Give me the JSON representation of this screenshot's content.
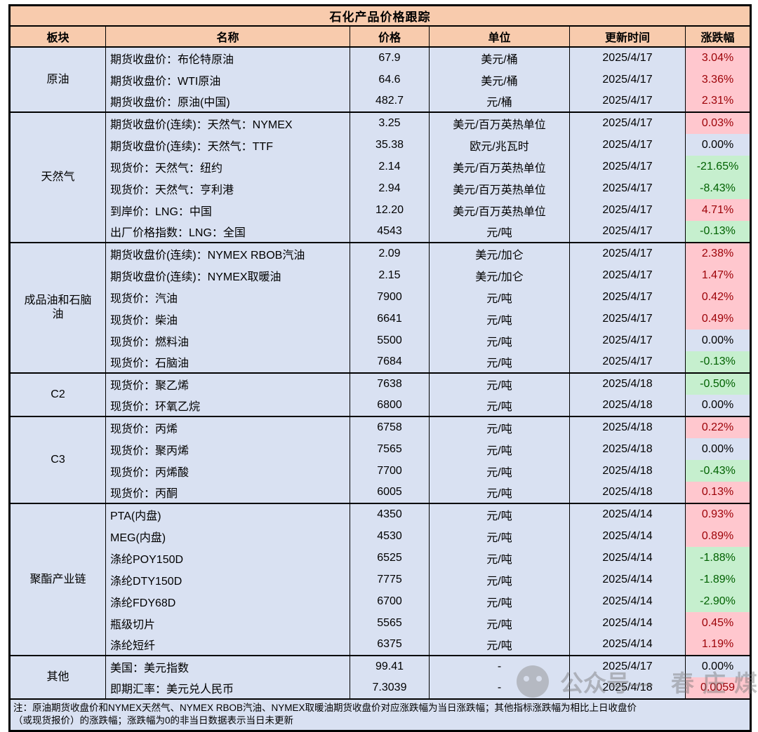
{
  "title": "石化产品价格跟踪",
  "columns": [
    "板块",
    "名称",
    "价格",
    "单位",
    "更新时间",
    "涨跌幅"
  ],
  "sections": [
    {
      "label": "原油",
      "rows": [
        {
          "name": "期货收盘价：布伦特原油",
          "price": "67.9",
          "unit": "美元/桶",
          "date": "2025/4/17",
          "change": "3.04%",
          "trend": "up"
        },
        {
          "name": "期货收盘价：WTI原油",
          "price": "64.6",
          "unit": "美元/桶",
          "date": "2025/4/17",
          "change": "3.36%",
          "trend": "up"
        },
        {
          "name": "期货收盘价：原油(中国)",
          "price": "482.7",
          "unit": "元/桶",
          "date": "2025/4/17",
          "change": "2.31%",
          "trend": "up"
        }
      ]
    },
    {
      "label": "天然气",
      "rows": [
        {
          "name": "期货收盘价(连续)：天然气：NYMEX",
          "price": "3.25",
          "unit": "美元/百万英热单位",
          "date": "2025/4/17",
          "change": "0.03%",
          "trend": "up"
        },
        {
          "name": "期货收盘价(连续)：天然气：TTF",
          "price": "35.38",
          "unit": "欧元/兆瓦时",
          "date": "2025/4/17",
          "change": "0.00%",
          "trend": "flat"
        },
        {
          "name": "现货价：天然气：纽约",
          "price": "2.14",
          "unit": "美元/百万英热单位",
          "date": "2025/4/17",
          "change": "-21.65%",
          "trend": "down"
        },
        {
          "name": "现货价：天然气：亨利港",
          "price": "2.94",
          "unit": "美元/百万英热单位",
          "date": "2025/4/17",
          "change": "-8.43%",
          "trend": "down"
        },
        {
          "name": "到岸价：LNG：中国",
          "price": "12.20",
          "unit": "美元/百万英热单位",
          "date": "2025/4/17",
          "change": "4.71%",
          "trend": "up"
        },
        {
          "name": "出厂价格指数：LNG：全国",
          "price": "4543",
          "unit": "元/吨",
          "date": "2025/4/17",
          "change": "-0.13%",
          "trend": "down"
        }
      ]
    },
    {
      "label": "成品油和石脑油",
      "rows": [
        {
          "name": "期货收盘价(连续)：NYMEX RBOB汽油",
          "price": "2.09",
          "unit": "美元/加仑",
          "date": "2025/4/17",
          "change": "2.38%",
          "trend": "up"
        },
        {
          "name": "期货收盘价(连续)：NYMEX取暖油",
          "price": "2.15",
          "unit": "美元/加仑",
          "date": "2025/4/17",
          "change": "1.47%",
          "trend": "up"
        },
        {
          "name": "现货价：汽油",
          "price": "7900",
          "unit": "元/吨",
          "date": "2025/4/17",
          "change": "0.42%",
          "trend": "up"
        },
        {
          "name": "现货价：柴油",
          "price": "6641",
          "unit": "元/吨",
          "date": "2025/4/17",
          "change": "0.49%",
          "trend": "up"
        },
        {
          "name": "现货价：燃料油",
          "price": "5500",
          "unit": "元/吨",
          "date": "2025/4/17",
          "change": "0.00%",
          "trend": "flat"
        },
        {
          "name": "现货价：石脑油",
          "price": "7684",
          "unit": "元/吨",
          "date": "2025/4/17",
          "change": "-0.13%",
          "trend": "down"
        }
      ]
    },
    {
      "label": "C2",
      "rows": [
        {
          "name": "现货价：聚乙烯",
          "price": "7638",
          "unit": "元/吨",
          "date": "2025/4/18",
          "change": "-0.50%",
          "trend": "down"
        },
        {
          "name": "现货价：环氧乙烷",
          "price": "6800",
          "unit": "元/吨",
          "date": "2025/4/18",
          "change": "0.00%",
          "trend": "flat"
        }
      ]
    },
    {
      "label": "C3",
      "rows": [
        {
          "name": "现货价：丙烯",
          "price": "6758",
          "unit": "元/吨",
          "date": "2025/4/18",
          "change": "0.22%",
          "trend": "up"
        },
        {
          "name": "现货价：聚丙烯",
          "price": "7565",
          "unit": "元/吨",
          "date": "2025/4/18",
          "change": "0.00%",
          "trend": "flat"
        },
        {
          "name": "现货价：丙烯酸",
          "price": "7700",
          "unit": "元/吨",
          "date": "2025/4/18",
          "change": "-0.43%",
          "trend": "down"
        },
        {
          "name": "现货价：丙酮",
          "price": "6005",
          "unit": "元/吨",
          "date": "2025/4/18",
          "change": "0.13%",
          "trend": "up"
        }
      ]
    },
    {
      "label": "聚酯产业链",
      "rows": [
        {
          "name": "PTA(内盘)",
          "price": "4350",
          "unit": "元/吨",
          "date": "2025/4/14",
          "change": "0.93%",
          "trend": "up"
        },
        {
          "name": "MEG(内盘)",
          "price": "4530",
          "unit": "元/吨",
          "date": "2025/4/14",
          "change": "0.89%",
          "trend": "up"
        },
        {
          "name": "涤纶POY150D",
          "price": "6525",
          "unit": "元/吨",
          "date": "2025/4/14",
          "change": "-1.88%",
          "trend": "down"
        },
        {
          "name": "涤纶DTY150D",
          "price": "7775",
          "unit": "元/吨",
          "date": "2025/4/14",
          "change": "-1.89%",
          "trend": "down"
        },
        {
          "name": "涤纶FDY68D",
          "price": "6700",
          "unit": "元/吨",
          "date": "2025/4/14",
          "change": "-2.90%",
          "trend": "down"
        },
        {
          "name": "瓶级切片",
          "price": "5565",
          "unit": "元/吨",
          "date": "2025/4/14",
          "change": "0.45%",
          "trend": "up"
        },
        {
          "name": "涤纶短纤",
          "price": "6375",
          "unit": "元/吨",
          "date": "2025/4/14",
          "change": "1.19%",
          "trend": "up"
        }
      ]
    },
    {
      "label": "其他",
      "rows": [
        {
          "name": "美国：美元指数",
          "price": "99.41",
          "unit": "-",
          "date": "2025/4/17",
          "change": "0.00%",
          "trend": "flat"
        },
        {
          "name": "即期汇率：美元兑人民币",
          "price": "7.3039",
          "unit": "-",
          "date": "2025/4/18",
          "change": "0.0059",
          "trend": "up"
        }
      ]
    }
  ],
  "footnote": {
    "line1": "注：原油期货收盘价和NYMEX天然气、NYMEX RBOB汽油、NYMEX取暖油期货收盘价对应涨跌幅为当日涨跌幅；其他指标涨跌幅为相比上日收盘价",
    "line2": "（或现货报价）的涨跌幅；涨跌幅为0的非当日数据表示当日未更新"
  },
  "watermark": {
    "prefix": "公众号—",
    "name": "春庄煤炭"
  },
  "colors": {
    "header_bg": "#F8CBAD",
    "body_bg": "#D9E1F2",
    "up_bg": "#FFC7CE",
    "up_text": "#9C0006",
    "down_bg": "#C6EFCE",
    "down_text": "#006100",
    "border": "#000000"
  },
  "chart_data": {
    "type": "table",
    "title": "石化产品价格跟踪",
    "columns": [
      "板块",
      "名称",
      "价格",
      "单位",
      "更新时间",
      "涨跌幅"
    ],
    "rows": [
      [
        "原油",
        "期货收盘价：布伦特原油",
        "67.9",
        "美元/桶",
        "2025/4/17",
        "3.04%"
      ],
      [
        "原油",
        "期货收盘价：WTI原油",
        "64.6",
        "美元/桶",
        "2025/4/17",
        "3.36%"
      ],
      [
        "原油",
        "期货收盘价：原油(中国)",
        "482.7",
        "元/桶",
        "2025/4/17",
        "2.31%"
      ],
      [
        "天然气",
        "期货收盘价(连续)：天然气：NYMEX",
        "3.25",
        "美元/百万英热单位",
        "2025/4/17",
        "0.03%"
      ],
      [
        "天然气",
        "期货收盘价(连续)：天然气：TTF",
        "35.38",
        "欧元/兆瓦时",
        "2025/4/17",
        "0.00%"
      ],
      [
        "天然气",
        "现货价：天然气：纽约",
        "2.14",
        "美元/百万英热单位",
        "2025/4/17",
        "-21.65%"
      ],
      [
        "天然气",
        "现货价：天然气：亨利港",
        "2.94",
        "美元/百万英热单位",
        "2025/4/17",
        "-8.43%"
      ],
      [
        "天然气",
        "到岸价：LNG：中国",
        "12.20",
        "美元/百万英热单位",
        "2025/4/17",
        "4.71%"
      ],
      [
        "天然气",
        "出厂价格指数：LNG：全国",
        "4543",
        "元/吨",
        "2025/4/17",
        "-0.13%"
      ],
      [
        "成品油和石脑油",
        "期货收盘价(连续)：NYMEX RBOB汽油",
        "2.09",
        "美元/加仑",
        "2025/4/17",
        "2.38%"
      ],
      [
        "成品油和石脑油",
        "期货收盘价(连续)：NYMEX取暖油",
        "2.15",
        "美元/加仑",
        "2025/4/17",
        "1.47%"
      ],
      [
        "成品油和石脑油",
        "现货价：汽油",
        "7900",
        "元/吨",
        "2025/4/17",
        "0.42%"
      ],
      [
        "成品油和石脑油",
        "现货价：柴油",
        "6641",
        "元/吨",
        "2025/4/17",
        "0.49%"
      ],
      [
        "成品油和石脑油",
        "现货价：燃料油",
        "5500",
        "元/吨",
        "2025/4/17",
        "0.00%"
      ],
      [
        "成品油和石脑油",
        "现货价：石脑油",
        "7684",
        "元/吨",
        "2025/4/17",
        "-0.13%"
      ],
      [
        "C2",
        "现货价：聚乙烯",
        "7638",
        "元/吨",
        "2025/4/18",
        "-0.50%"
      ],
      [
        "C2",
        "现货价：环氧乙烷",
        "6800",
        "元/吨",
        "2025/4/18",
        "0.00%"
      ],
      [
        "C3",
        "现货价：丙烯",
        "6758",
        "元/吨",
        "2025/4/18",
        "0.22%"
      ],
      [
        "C3",
        "现货价：聚丙烯",
        "7565",
        "元/吨",
        "2025/4/18",
        "0.00%"
      ],
      [
        "C3",
        "现货价：丙烯酸",
        "7700",
        "元/吨",
        "2025/4/18",
        "-0.43%"
      ],
      [
        "C3",
        "现货价：丙酮",
        "6005",
        "元/吨",
        "2025/4/18",
        "0.13%"
      ],
      [
        "聚酯产业链",
        "PTA(内盘)",
        "4350",
        "元/吨",
        "2025/4/14",
        "0.93%"
      ],
      [
        "聚酯产业链",
        "MEG(内盘)",
        "4530",
        "元/吨",
        "2025/4/14",
        "0.89%"
      ],
      [
        "聚酯产业链",
        "涤纶POY150D",
        "6525",
        "元/吨",
        "2025/4/14",
        "-1.88%"
      ],
      [
        "聚酯产业链",
        "涤纶DTY150D",
        "7775",
        "元/吨",
        "2025/4/14",
        "-1.89%"
      ],
      [
        "聚酯产业链",
        "涤纶FDY68D",
        "6700",
        "元/吨",
        "2025/4/14",
        "-2.90%"
      ],
      [
        "聚酯产业链",
        "瓶级切片",
        "5565",
        "元/吨",
        "2025/4/14",
        "0.45%"
      ],
      [
        "聚酯产业链",
        "涤纶短纤",
        "6375",
        "元/吨",
        "2025/4/14",
        "1.19%"
      ],
      [
        "其他",
        "美国：美元指数",
        "99.41",
        "-",
        "2025/4/17",
        "0.00%"
      ],
      [
        "其他",
        "即期汇率：美元兑人民币",
        "7.3039",
        "-",
        "2025/4/18",
        "0.0059"
      ]
    ]
  }
}
